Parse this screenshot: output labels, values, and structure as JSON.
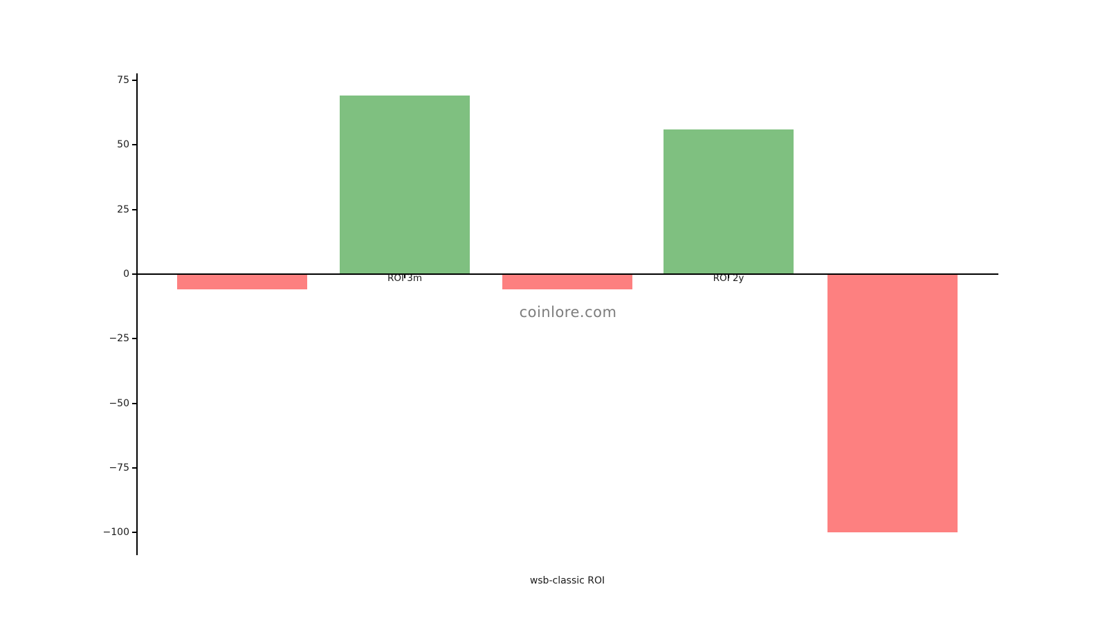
{
  "chart_data": {
    "type": "bar",
    "title": "",
    "xlabel": "wsb-classic ROI",
    "ylabel": "",
    "watermark": "coinlore.com",
    "categories": [
      "",
      "ROI 3m",
      "",
      "ROI 2y",
      ""
    ],
    "values": [
      -6,
      69,
      -6,
      56,
      -100
    ],
    "yticks": [
      75,
      50,
      25,
      0,
      -25,
      -50,
      -75,
      -100
    ],
    "ylim": [
      -108.5,
      77.5
    ],
    "grid": false,
    "legend": "none",
    "colors": {
      "positive_bar": "#7fc080",
      "negative_bar": "#fd8080",
      "axis": "#000000",
      "tick_text": "#1a1a1a",
      "watermark_text": "#7d7d7d"
    }
  }
}
